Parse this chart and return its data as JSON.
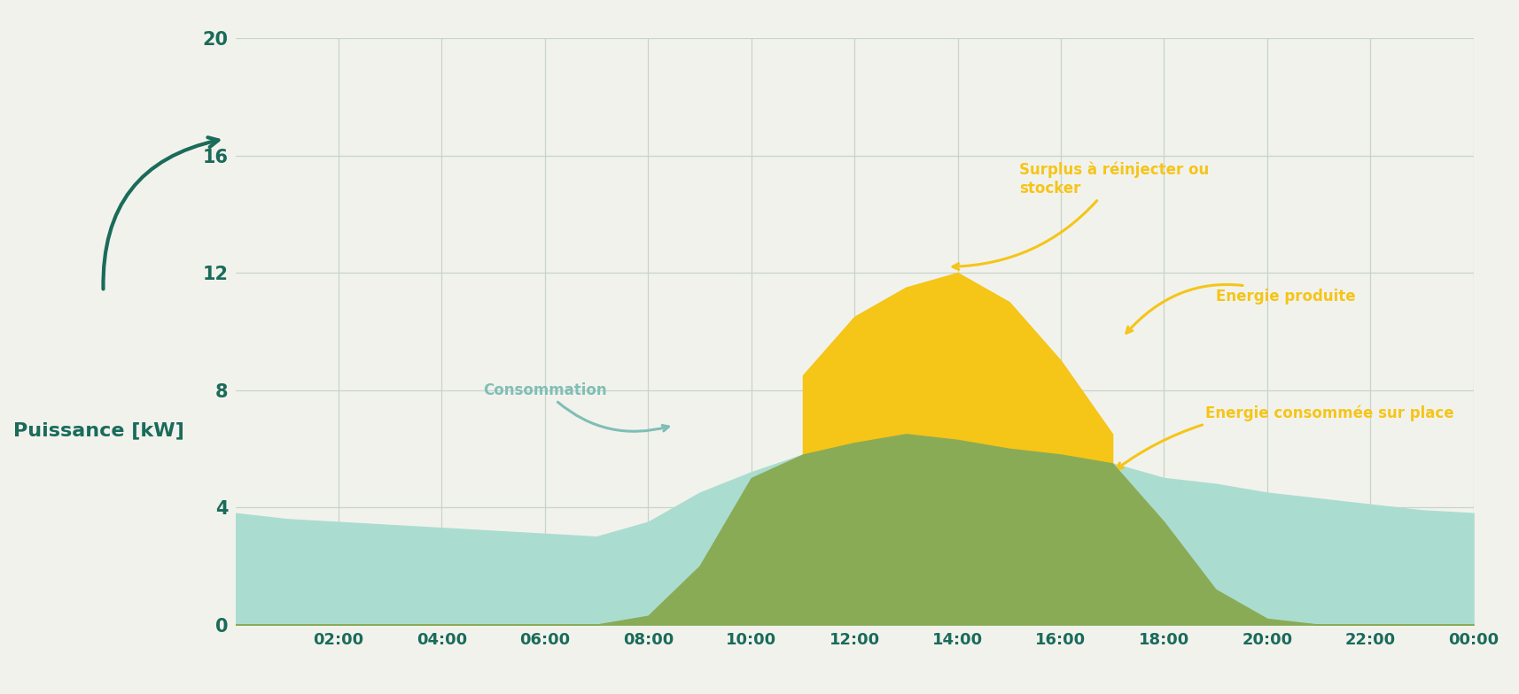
{
  "background_color": "#f2f2ed",
  "plot_bg_color": "#f2f2ed",
  "grid_color": "#c8d4c8",
  "tick_color": "#1a6b5a",
  "ylim": [
    0,
    20
  ],
  "yticks": [
    0,
    4,
    8,
    12,
    16,
    20
  ],
  "xtick_labels": [
    "02:00",
    "04:00",
    "06:00",
    "08:00",
    "10:00",
    "12:00",
    "14:00",
    "16:00",
    "18:00",
    "20:00",
    "22:00",
    "00:00"
  ],
  "consommation_color": "#aaddd0",
  "production_color": "#f5c518",
  "overlap_color": "#8aab55",
  "ylabel_text": "Puissance [kW]",
  "ylabel_color": "#1a6b5a",
  "annotation_surplus_text": "Surplus à réinjecter ou\nstocker",
  "annotation_produite_text": "Energie produite",
  "annotation_consommee_text": "Energie consommée sur place",
  "annotation_consommation_text": "Consommation",
  "annotation_color": "#f5c518",
  "annotation_consommation_color": "#7fbfb5",
  "hours": [
    0,
    1,
    2,
    3,
    4,
    5,
    6,
    7,
    8,
    9,
    10,
    11,
    12,
    13,
    14,
    15,
    16,
    17,
    18,
    19,
    20,
    21,
    22,
    23,
    24
  ],
  "consumption": [
    3.8,
    3.6,
    3.5,
    3.4,
    3.3,
    3.2,
    3.1,
    3.0,
    3.5,
    4.5,
    5.2,
    5.8,
    6.2,
    6.5,
    6.3,
    6.0,
    5.8,
    5.5,
    5.0,
    4.8,
    4.5,
    4.3,
    4.1,
    3.9,
    3.8
  ],
  "production": [
    0,
    0,
    0,
    0,
    0,
    0,
    0,
    0,
    0.3,
    2.0,
    5.0,
    8.5,
    10.5,
    11.5,
    12.0,
    11.0,
    9.0,
    6.5,
    3.5,
    1.2,
    0.2,
    0,
    0,
    0,
    0
  ]
}
